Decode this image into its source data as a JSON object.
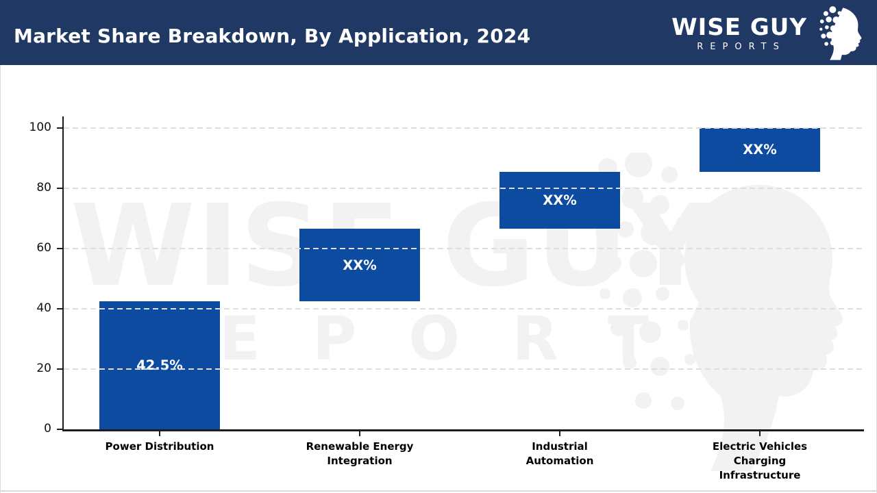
{
  "header": {
    "title": "Market Share Breakdown, By Application, 2024",
    "logo": {
      "name": "WISE GUY",
      "tagline": "REPORTS",
      "icon": "dotted-head-icon"
    }
  },
  "watermark": {
    "name": "WISE GUY",
    "tagline": "REPORTS"
  },
  "chart_data": {
    "type": "bar",
    "subtype": "floating-waterfall",
    "title": "Market Share Breakdown, By Application, 2024",
    "categories": [
      "Power Distribution",
      "Renewable Energy\nIntegration",
      "Industrial\nAutomation",
      "Electric Vehicles\nCharging\nInfrastructure"
    ],
    "bars": [
      {
        "category": "Power Distribution",
        "start": 0,
        "end": 42.5,
        "value_label": "42.5%"
      },
      {
        "category": "Renewable Energy Integration",
        "start": 42.5,
        "end": 66.5,
        "value_label": "XX%"
      },
      {
        "category": "Industrial Automation",
        "start": 66.5,
        "end": 85.5,
        "value_label": "XX%"
      },
      {
        "category": "Electric Vehicles Charging Infrastructure",
        "start": 85.5,
        "end": 100,
        "value_label": "XX%"
      }
    ],
    "xlabel": "",
    "ylabel": "",
    "ylim": [
      0,
      105
    ],
    "y_ticks": [
      0,
      20,
      40,
      60,
      80,
      100
    ],
    "grid": "horizontal-dashed",
    "legend": "none",
    "colors": {
      "bar": "#0c4ba0",
      "bar_label": "#ffffff",
      "grid": "#dedede",
      "axis": "#1c1c1c",
      "header_bg": "#203864",
      "watermark": "#f2f2f3"
    }
  }
}
